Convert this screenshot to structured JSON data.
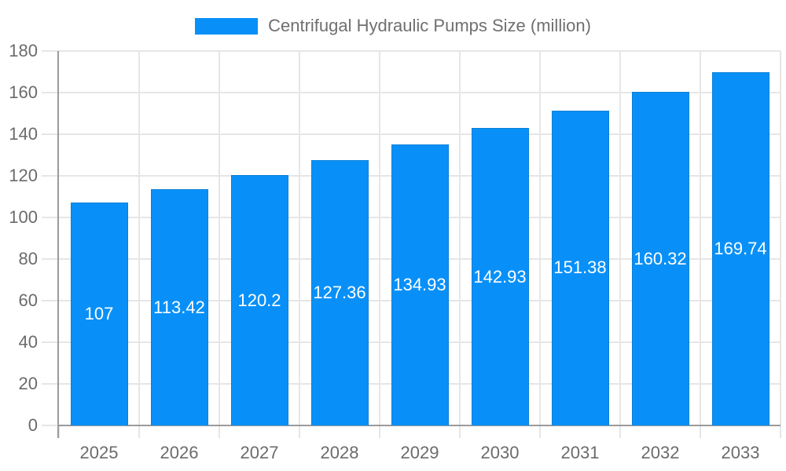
{
  "chart_data": {
    "type": "bar",
    "title": "Centrifugal Hydraulic Pumps Size (million)",
    "categories": [
      "2025",
      "2026",
      "2027",
      "2028",
      "2029",
      "2030",
      "2031",
      "2032",
      "2033"
    ],
    "values": [
      107,
      113.42,
      120.2,
      127.36,
      134.93,
      142.93,
      151.38,
      160.32,
      169.74
    ],
    "value_labels": [
      "107",
      "113.42",
      "120.2",
      "127.36",
      "134.93",
      "142.93",
      "151.38",
      "160.32",
      "169.74"
    ],
    "xlabel": "",
    "ylabel": "",
    "ylim": [
      0,
      180
    ],
    "ytick_step": 20,
    "yticks": [
      0,
      20,
      40,
      60,
      80,
      100,
      120,
      140,
      160,
      180
    ],
    "grid": true,
    "legend_position": "top"
  },
  "colors": {
    "background": "#ffffff",
    "bar_fill": "#0890f8",
    "bar_border": "#0a7fd8",
    "grid_line": "#e6e6e6",
    "axis_line": "#9b9b9b",
    "axis_text": "#6b6b6b",
    "legend_text": "#6f6f6f",
    "value_label_text": "#ffffff"
  }
}
